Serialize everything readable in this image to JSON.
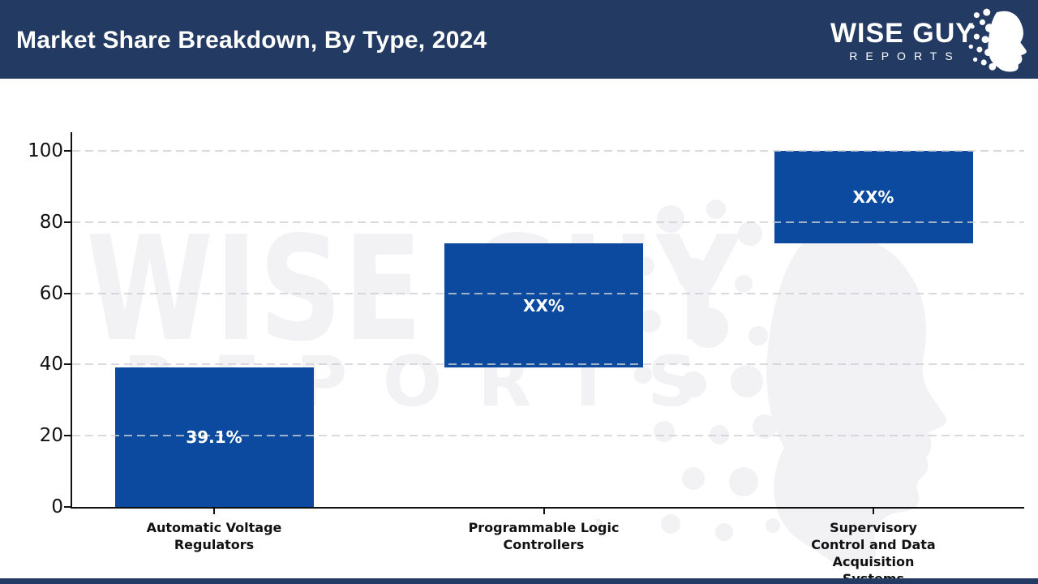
{
  "header": {
    "title": "Market Share Breakdown, By Type, 2024",
    "logo": {
      "brand_line1": "WISE GUY",
      "brand_line2": "REPORTS"
    }
  },
  "watermark": {
    "line1": "WISE GUY",
    "line2": "REPORTS"
  },
  "chart_data": {
    "type": "bar",
    "variant": "waterfall",
    "title": "Market Share Breakdown, By Type, 2024",
    "categories": [
      "Automatic Voltage\nRegulators",
      "Programmable Logic\nControllers",
      "Supervisory\nControl and Data\nAcquisition\nSystems"
    ],
    "series": [
      {
        "segments": [
          {
            "category": "Automatic Voltage Regulators",
            "start": 0,
            "end": 39.1,
            "label": "39.1%"
          },
          {
            "category": "Programmable Logic Controllers",
            "start": 39.1,
            "end": 74,
            "label": "XX%"
          },
          {
            "category": "Supervisory Control and Data Acquisition Systems",
            "start": 74,
            "end": 100,
            "label": "XX%"
          }
        ]
      }
    ],
    "yticks": [
      0,
      20,
      40,
      60,
      80,
      100
    ],
    "ylim": [
      0,
      105
    ],
    "grid": {
      "horizontal": true,
      "style": "dashed"
    },
    "legend": "none",
    "colors": {
      "bar": "#0b4a9e",
      "bar_label": "#ffffff",
      "axis": "#111111",
      "gridline": "#e3e3e6",
      "header_bg": "#233a63",
      "watermark": "#f2f2f4"
    }
  }
}
